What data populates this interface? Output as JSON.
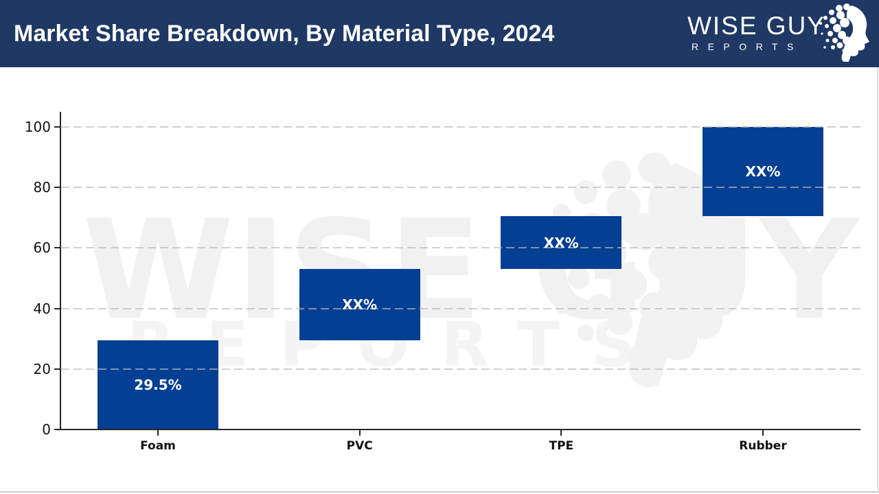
{
  "header": {
    "title": "Market Share Breakdown, By Material Type, 2024",
    "logo": {
      "wordmark": "WISE GUY",
      "subtext": "REPORTS"
    }
  },
  "watermark": {
    "line1": "WISE GUY",
    "line2": "REPORTS"
  },
  "chart_data": {
    "type": "bar",
    "variant": "waterfall",
    "title": "Market Share Breakdown, By Material Type, 2024",
    "categories": [
      "Foam",
      "PVC",
      "TPE",
      "Rubber"
    ],
    "segments": [
      {
        "category": "Foam",
        "start": 0,
        "end": 29.5,
        "label": "29.5%"
      },
      {
        "category": "PVC",
        "start": 29.5,
        "end": 53,
        "label": "XX%"
      },
      {
        "category": "TPE",
        "start": 53,
        "end": 70.5,
        "label": "XX%"
      },
      {
        "category": "Rubber",
        "start": 70.5,
        "end": 100,
        "label": "XX%"
      }
    ],
    "xlabel": "",
    "ylabel": "",
    "ylim": [
      0,
      105
    ],
    "yticks": [
      0,
      20,
      40,
      60,
      80,
      100
    ],
    "grid": "horizontal-dashed-over-bars",
    "legend": "none",
    "colors": {
      "bar": "#053F94",
      "bar_label": "#FFFFFF",
      "axis": "#262626",
      "tick_label": "#111111",
      "grid": "#B9B9B9"
    }
  },
  "theme": {
    "header_bg": "#1F3864",
    "header_text": "#FFFFFF",
    "canvas_bg": "#FFFFFF",
    "watermark_color": "#F1F1F1"
  }
}
